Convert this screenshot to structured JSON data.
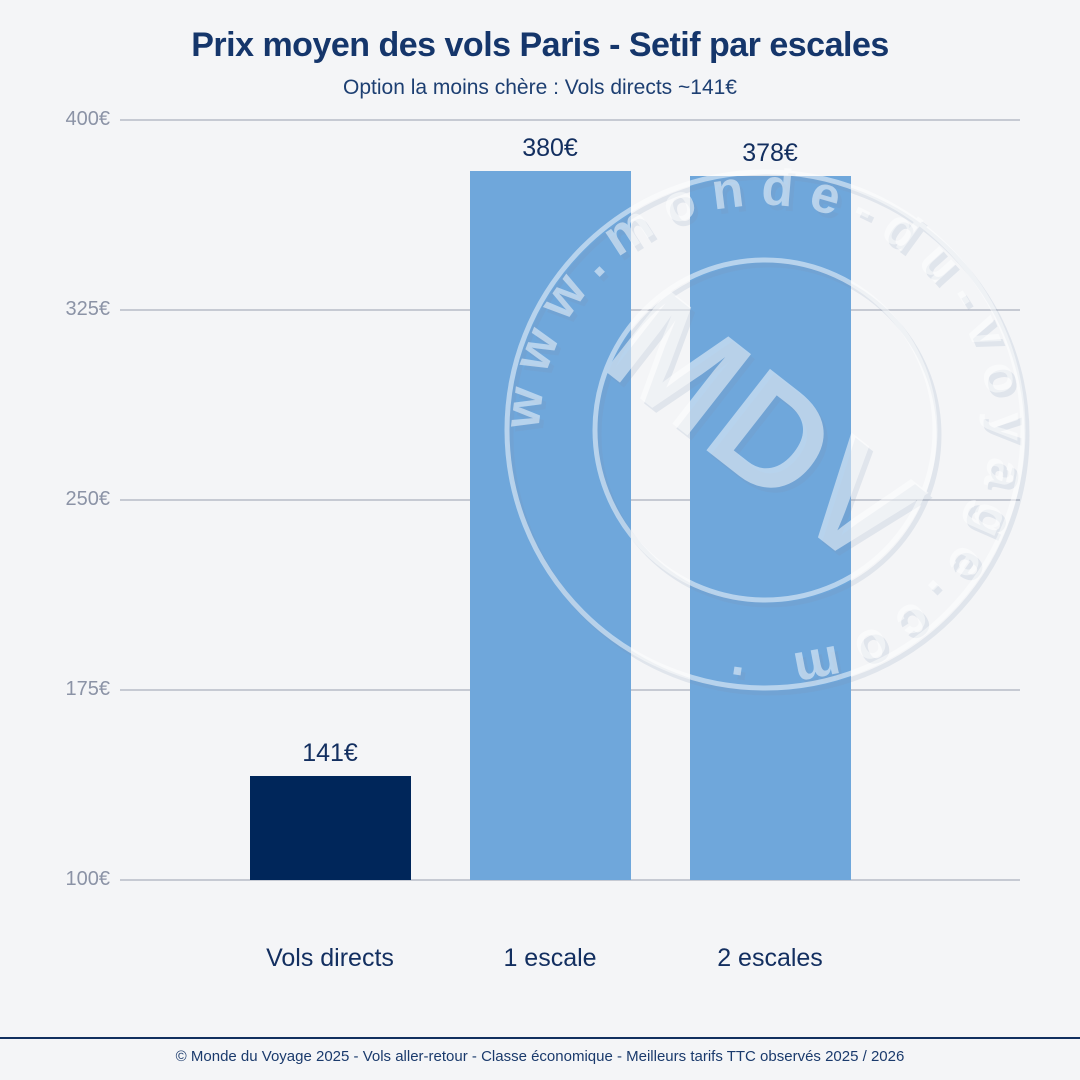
{
  "title": "Prix moyen des vols Paris - Setif par escales",
  "subtitle": "Option la moins chère : Vols directs ~141€",
  "chart_data": {
    "type": "bar",
    "title": "Prix moyen des vols Paris - Setif par escales",
    "subtitle": "Option la moins chère : Vols directs ~141€",
    "categories": [
      "Vols directs",
      "1 escale",
      "2 escales"
    ],
    "values": [
      141,
      380,
      378
    ],
    "value_labels": [
      "141€",
      "380€",
      "378€"
    ],
    "bar_colors": [
      "#00265a",
      "#6fa7db",
      "#6fa7db"
    ],
    "xlabel": "",
    "ylabel": "",
    "ylim": [
      100,
      400
    ],
    "yticks": [
      100,
      175,
      250,
      325,
      400
    ],
    "ytick_labels": [
      "100€",
      "175€",
      "250€",
      "325€",
      "400€"
    ],
    "grid": true,
    "legend": false
  },
  "colors": {
    "background": "#f4f5f7",
    "title": "#15366b",
    "subtitle": "#1d3f72",
    "axis_labels": "#8b93a6",
    "gridline": "#c6cad3",
    "navy_bar": "#00265a",
    "blue_bar": "#6fa7db",
    "footer": "#1a3a6c"
  },
  "watermark": {
    "ring_text": "www.monde-du-voyage.com ·",
    "center_text": "MDV"
  },
  "footer": {
    "text": "© Monde du Voyage 2025 - Vols aller-retour - Classe économique - Meilleurs tarifs TTC observés 2025 / 2026"
  }
}
